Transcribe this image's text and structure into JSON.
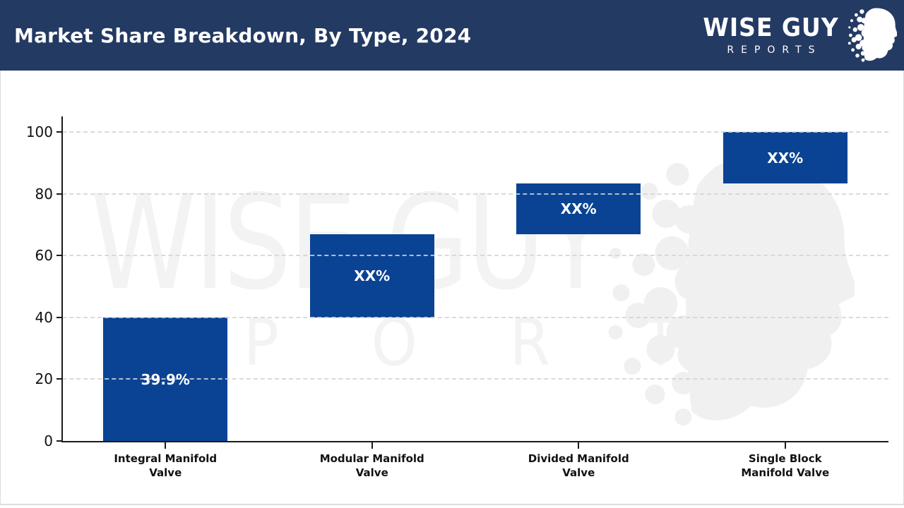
{
  "header": {
    "title": "Market Share Breakdown, By Type, 2024"
  },
  "logo": {
    "line1": "WISE GUY",
    "line2": "REPORTS"
  },
  "watermark": {
    "line1": "WISE GUY",
    "line2": "P O R T S"
  },
  "chart_data": {
    "type": "bar",
    "subtype": "stacked-waterfall-segments",
    "title": "Market Share Breakdown, By Type, 2024",
    "xlabel": "",
    "ylabel": "",
    "ylim": [
      0,
      100
    ],
    "yticks": [
      0,
      20,
      40,
      60,
      80,
      100
    ],
    "grid": "horizontal-dashed",
    "legend": "none",
    "categories": [
      "Integral Manifold Valve",
      "Modular Manifold Valve",
      "Divided Manifold Valve",
      "Single Block Manifold Valve"
    ],
    "category_lines": [
      "Integral Manifold\nValve",
      "Modular Manifold\nValve",
      "Divided Manifold\nValve",
      "Single Block\nManifold Valve"
    ],
    "segments": [
      {
        "category": "Integral Manifold Valve",
        "start": 0,
        "end": 39.9,
        "label": "39.9%"
      },
      {
        "category": "Modular Manifold Valve",
        "start": 39.9,
        "end": 66.8,
        "label": "XX%"
      },
      {
        "category": "Divided Manifold Valve",
        "start": 66.8,
        "end": 83.3,
        "label": "XX%"
      },
      {
        "category": "Single Block Manifold Valve",
        "start": 83.3,
        "end": 100,
        "label": "XX%"
      }
    ],
    "bar_color": "#0a4393",
    "bar_label_color": "#ffffff"
  },
  "colors": {
    "header_bg": "#233a63",
    "bar": "#0a4393",
    "grid": "#d3d3d3",
    "axis": "#1a1a1a",
    "watermark": "#f3f3f3",
    "text": "#111111"
  }
}
